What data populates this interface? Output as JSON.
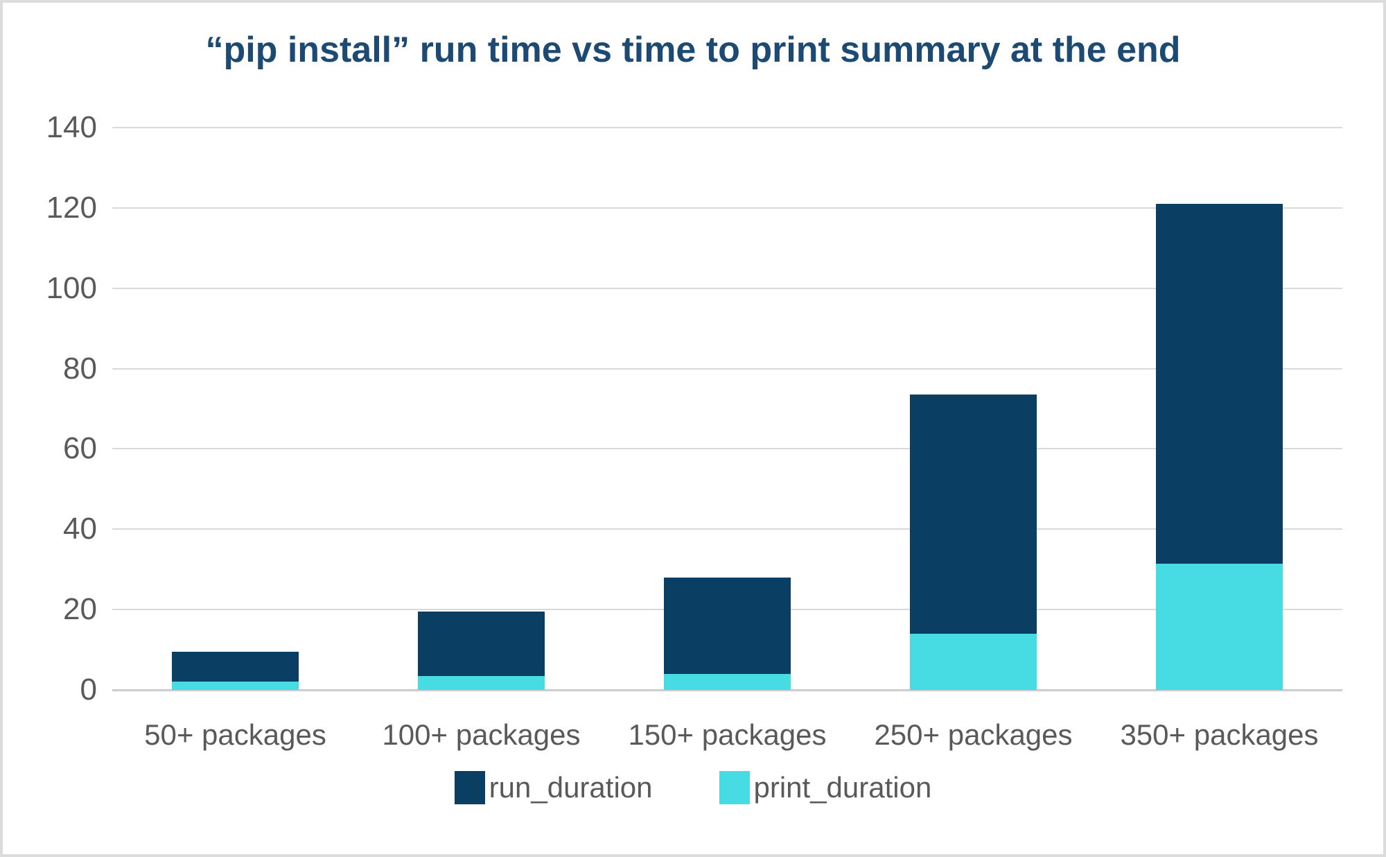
{
  "title": "“pip install” run time vs time to print summary at the end",
  "colors": {
    "title_text": "#1c4a72",
    "axis_text": "#595959",
    "gridline": "#d9d9d9",
    "axis_line": "#cccccc",
    "card_border": "#dcdcdc",
    "run_duration": "#0a3e63",
    "print_duration": "#47dbe4"
  },
  "chart_data": {
    "type": "bar",
    "stacked": true,
    "title": "“pip install” run time vs time to print summary at the end",
    "categories": [
      "50+ packages",
      "100+ packages",
      "150+ packages",
      "250+ packages",
      "350+ packages"
    ],
    "series": [
      {
        "name": "run_duration",
        "color": "#0a3e63",
        "values": [
          7.5,
          16,
          24,
          59.5,
          89.5
        ]
      },
      {
        "name": "print_duration",
        "color": "#47dbe4",
        "values": [
          2,
          3.5,
          4,
          14,
          31.5
        ]
      }
    ],
    "stack_order_bottom_to_top": [
      "print_duration",
      "run_duration"
    ],
    "stack_totals": [
      9.5,
      19.5,
      28,
      73.5,
      121
    ],
    "xlabel": "",
    "ylabel": "",
    "y_axis": {
      "min": 0,
      "max": 140,
      "step": 20,
      "tick_labels": [
        "0",
        "20",
        "40",
        "60",
        "80",
        "100",
        "120",
        "140"
      ]
    },
    "grid": true,
    "legend_position": "bottom",
    "legend_entries": [
      "run_duration",
      "print_duration"
    ]
  }
}
